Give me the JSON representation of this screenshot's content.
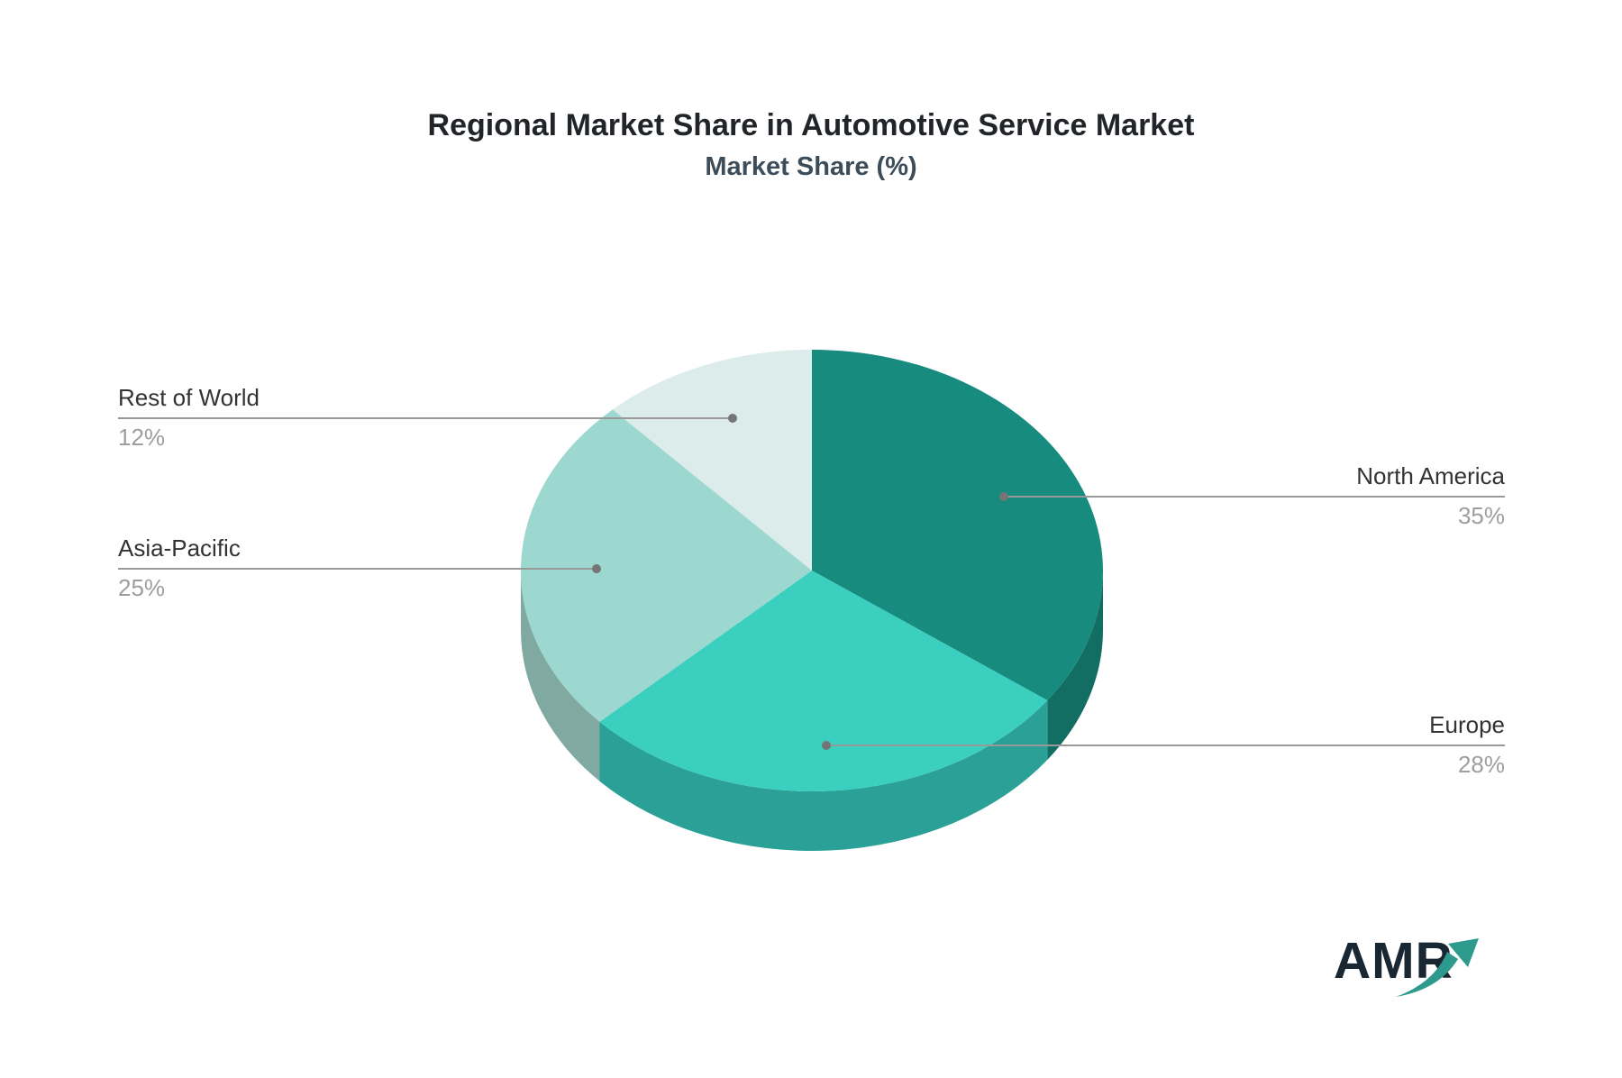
{
  "header": {
    "title": "Regional Market Share in Automotive Service Market",
    "subtitle": "Market Share (%)"
  },
  "chart_data": {
    "type": "pie",
    "style": "pie-3d",
    "title": "Regional Market Share in Automotive Service Market",
    "subtitle": "Market Share (%)",
    "unit": "%",
    "start_angle_deg": -90,
    "direction": "clockwise",
    "legend": "none",
    "series": [
      {
        "label": "North America",
        "value": 35,
        "pct_label": "35%",
        "color": "#168b7e",
        "side_color": "#126d63"
      },
      {
        "label": "Europe",
        "value": 28,
        "pct_label": "28%",
        "color": "#3bcfc0",
        "side_color": "#2aa096"
      },
      {
        "label": "Asia-Pacific",
        "value": 25,
        "pct_label": "25%",
        "color": "#9cd8d0",
        "side_color": "#7fa9a1"
      },
      {
        "label": "Rest of World",
        "value": 12,
        "pct_label": "12%",
        "color": "#dcecea",
        "side_color": "#b8cfcc"
      }
    ],
    "label_style": {
      "name_color": "#333333",
      "pct_color": "#9e9e9e",
      "line_color": "#999999"
    }
  },
  "logo": {
    "text": "AMR",
    "color": "#182731",
    "arrow_color": "#2e998d"
  }
}
